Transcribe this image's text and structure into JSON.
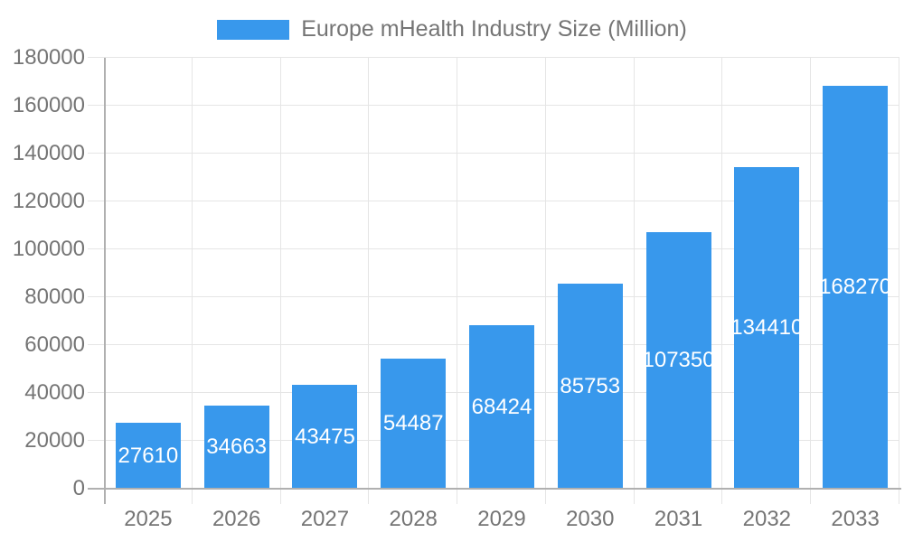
{
  "legend": {
    "series_label": "Europe mHealth Industry Size (Million)"
  },
  "colors": {
    "bar": "#3898EC",
    "grid_light": "#e5e5e5",
    "axis_dark": "#b0b0b0",
    "axis_text": "#757575",
    "bar_label_text": "#ffffff",
    "background": "#ffffff"
  },
  "chart_data": {
    "type": "bar",
    "title": "Europe mHealth Industry Size (Million)",
    "categories": [
      "2025",
      "2026",
      "2027",
      "2028",
      "2029",
      "2030",
      "2031",
      "2032",
      "2033"
    ],
    "values": [
      27610,
      34663,
      43475,
      54487,
      68424,
      85753,
      107350,
      134410,
      168270
    ],
    "data_labels": [
      "27610",
      "34663",
      "43475",
      "54487",
      "68424",
      "85753",
      "107350",
      "134410",
      "168270"
    ],
    "xlabel": "",
    "ylabel": "",
    "ylim": [
      0,
      180000
    ],
    "ytick_step": 20000,
    "ytick_labels": [
      "0",
      "20000",
      "40000",
      "60000",
      "80000",
      "100000",
      "120000",
      "140000",
      "160000",
      "180000"
    ],
    "grid": true,
    "legend_position": "top"
  }
}
